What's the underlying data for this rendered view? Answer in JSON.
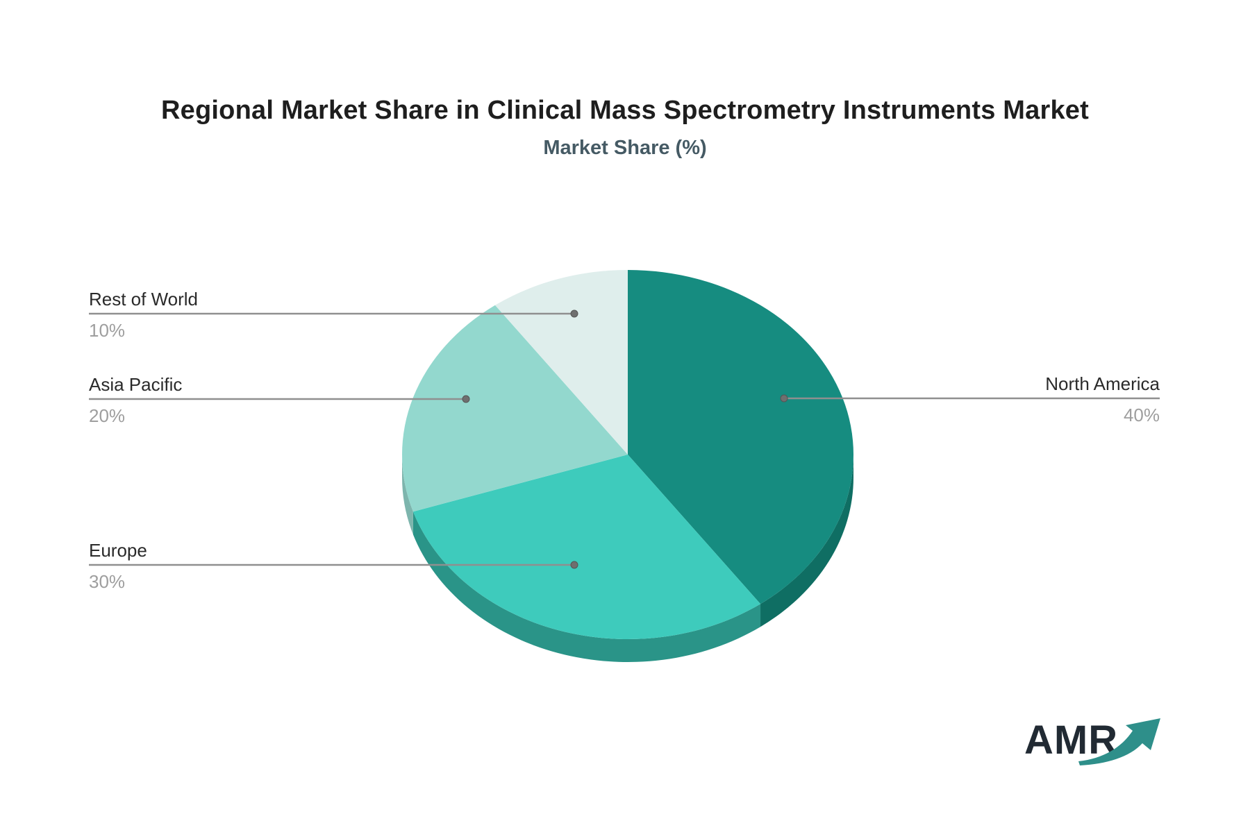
{
  "chart_data": {
    "type": "pie",
    "effect": "3d",
    "title": "Regional Market Share in Clinical Mass Spectrometry Instruments Market",
    "subtitle": "Market Share (%)",
    "direction": "clockwise",
    "start_angle_deg": 0,
    "legend_position": "callouts",
    "segments": [
      {
        "label": "North America",
        "value": 40,
        "value_label": "40%",
        "color": "#168c80",
        "side_color": "#0f6e63"
      },
      {
        "label": "Europe",
        "value": 30,
        "value_label": "30%",
        "color": "#3ecbbc",
        "side_color": "#2a9488"
      },
      {
        "label": "Asia Pacific",
        "value": 20,
        "value_label": "20%",
        "color": "#93d8ce",
        "side_color": "#7db5ad"
      },
      {
        "label": "Rest of World",
        "value": 10,
        "value_label": "10%",
        "color": "#dfeeec",
        "side_color": "#c2d8d4"
      }
    ],
    "colors": {
      "title": "#1e1e1e",
      "subtitle": "#455a64",
      "label_text": "#2a2a2a",
      "value_text": "#9e9e9e",
      "leader_line": "#8f8f8f",
      "leader_dot": "#6f6f6f"
    }
  },
  "logo": {
    "text": "AMR",
    "text_color": "#212a33",
    "arrow_color": "#2e8f8a"
  }
}
